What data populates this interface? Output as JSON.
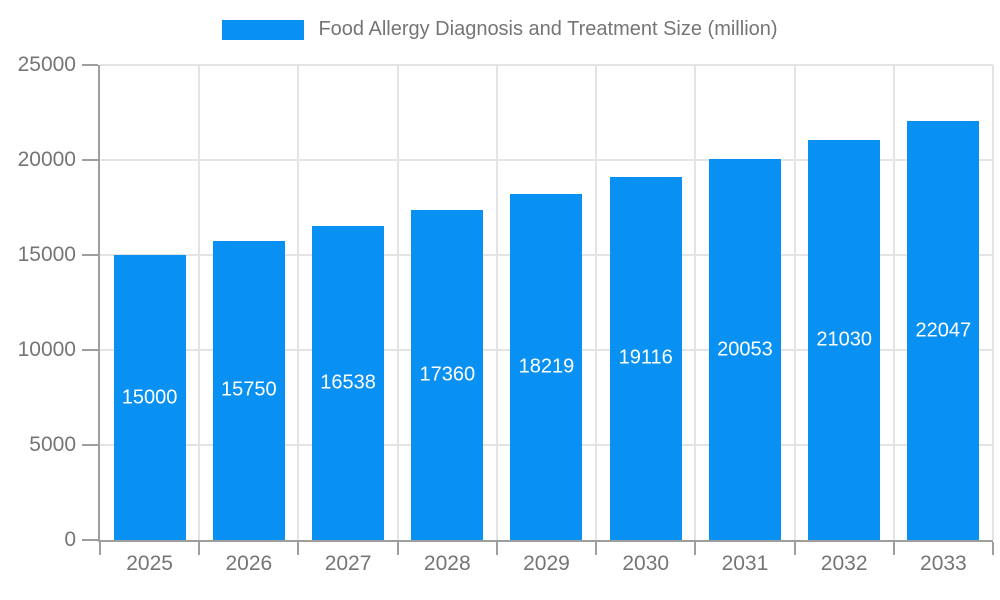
{
  "legend": {
    "label": "Food Allergy Diagnosis and Treatment Size (million)",
    "swatch_color": "#0890f2"
  },
  "chart_data": {
    "type": "bar",
    "title": "Food Allergy Diagnosis and Treatment Size (million)",
    "categories": [
      "2025",
      "2026",
      "2027",
      "2028",
      "2029",
      "2030",
      "2031",
      "2032",
      "2033"
    ],
    "values": [
      15000,
      15750,
      16538,
      17360,
      18219,
      19116,
      20053,
      21030,
      22047
    ],
    "series": [
      {
        "name": "Food Allergy Diagnosis and Treatment Size (million)",
        "values": [
          15000,
          15750,
          16538,
          17360,
          18219,
          19116,
          20053,
          21030,
          22047
        ]
      }
    ],
    "xlabel": "",
    "ylabel": "",
    "ylim": [
      0,
      25000
    ],
    "yticks": [
      0,
      5000,
      10000,
      15000,
      20000,
      25000
    ],
    "grid": true,
    "legend_position": "top",
    "bar_color": "#0890f2",
    "value_label_color": "#ffffff",
    "axis_color": "#9e9e9e",
    "gridline_color": "#e4e4e4",
    "text_color": "#757575"
  }
}
